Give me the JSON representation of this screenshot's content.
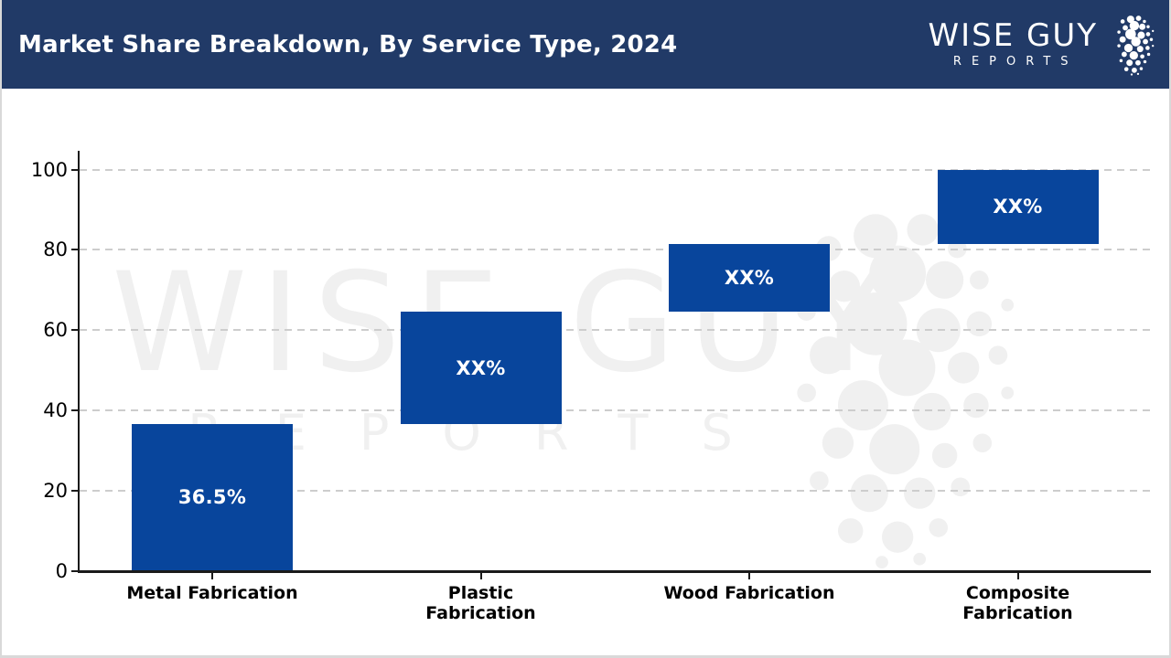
{
  "header": {
    "title": "Market Share Breakdown, By Service Type, 2024",
    "logo": {
      "wordmark": "WISE GUY",
      "subtext": "REPORTS"
    }
  },
  "watermark": {
    "wordmark": "WISE GUY",
    "subtext": "REPORTS"
  },
  "chart_data": {
    "type": "bar",
    "variant": "waterfall",
    "title": "Market Share Breakdown, By Service Type, 2024",
    "categories": [
      "Metal Fabrication",
      "Plastic Fabrication",
      "Wood Fabrication",
      "Composite Fabrication"
    ],
    "category_label_lines": [
      [
        "Metal Fabrication"
      ],
      [
        "Plastic",
        "Fabrication"
      ],
      [
        "Wood Fabrication"
      ],
      [
        "Composite",
        "Fabrication"
      ]
    ],
    "segments": [
      {
        "category": "Metal Fabrication",
        "start": 0,
        "end": 36.5,
        "label": "36.5%"
      },
      {
        "category": "Plastic Fabrication",
        "start": 36.5,
        "end": 64.5,
        "label": "XX%"
      },
      {
        "category": "Wood Fabrication",
        "start": 64.5,
        "end": 81.5,
        "label": "XX%"
      },
      {
        "category": "Composite Fabrication",
        "start": 81.5,
        "end": 100,
        "label": "XX%"
      }
    ],
    "yticks": [
      0,
      20,
      40,
      60,
      80,
      100
    ],
    "ylim": [
      0,
      105
    ],
    "xlabel": "",
    "ylabel": "",
    "grid": "horizontal-dashed",
    "legend": "none",
    "bar_color": "#08459c",
    "bar_label_color": "#ffffff"
  },
  "colors": {
    "header_bg": "#213a67",
    "bar": "#08459c",
    "grid": "#cdcdcd",
    "axis": "#1a1a1a",
    "watermark": "#f0f0f0",
    "border": "#d9d9d9"
  }
}
